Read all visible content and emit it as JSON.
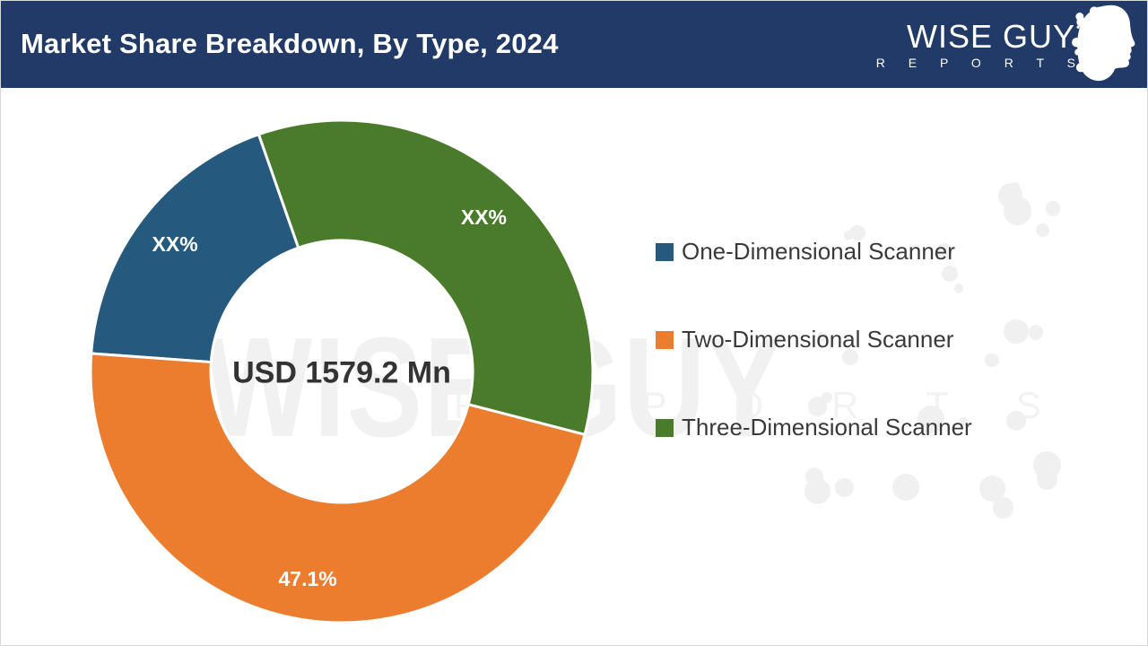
{
  "header": {
    "title": "Market Share Breakdown, By Type, 2024",
    "logo": {
      "brand": "WISE GUY",
      "sub": "R E P O R T S"
    }
  },
  "watermark": {
    "brand": "WISE GUY",
    "sub": "R E P O R T S"
  },
  "chart_data": {
    "type": "pie",
    "variant": "donut",
    "title": "Market Share Breakdown, By Type, 2024",
    "center_label": "USD 1579.2 Mn",
    "legend_position": "right",
    "start_angle_clockwise_from_top_deg": 340.7,
    "direction": "counterclockwise",
    "segments": [
      {
        "label": "One-Dimensional Scanner",
        "display_value": "XX%",
        "value_pct_est": 18.5,
        "color": "#255A7E"
      },
      {
        "label": "Two-Dimensional Scanner",
        "display_value": "47.1%",
        "value_pct_est": 47.1,
        "color": "#ED7D2E"
      },
      {
        "label": "Three-Dimensional Scanner",
        "display_value": "XX%",
        "value_pct_est": 34.4,
        "color": "#4A7B2B"
      }
    ]
  },
  "colors": {
    "header_bg": "#223A67",
    "canvas_bg": "#FFFFFF",
    "center_text": "#333333",
    "legend_text": "#3A3A3A",
    "slice_label_text": "#FFFFFF",
    "watermark_gray": "#F1F1F1",
    "border_gray": "#D9D9D9"
  }
}
